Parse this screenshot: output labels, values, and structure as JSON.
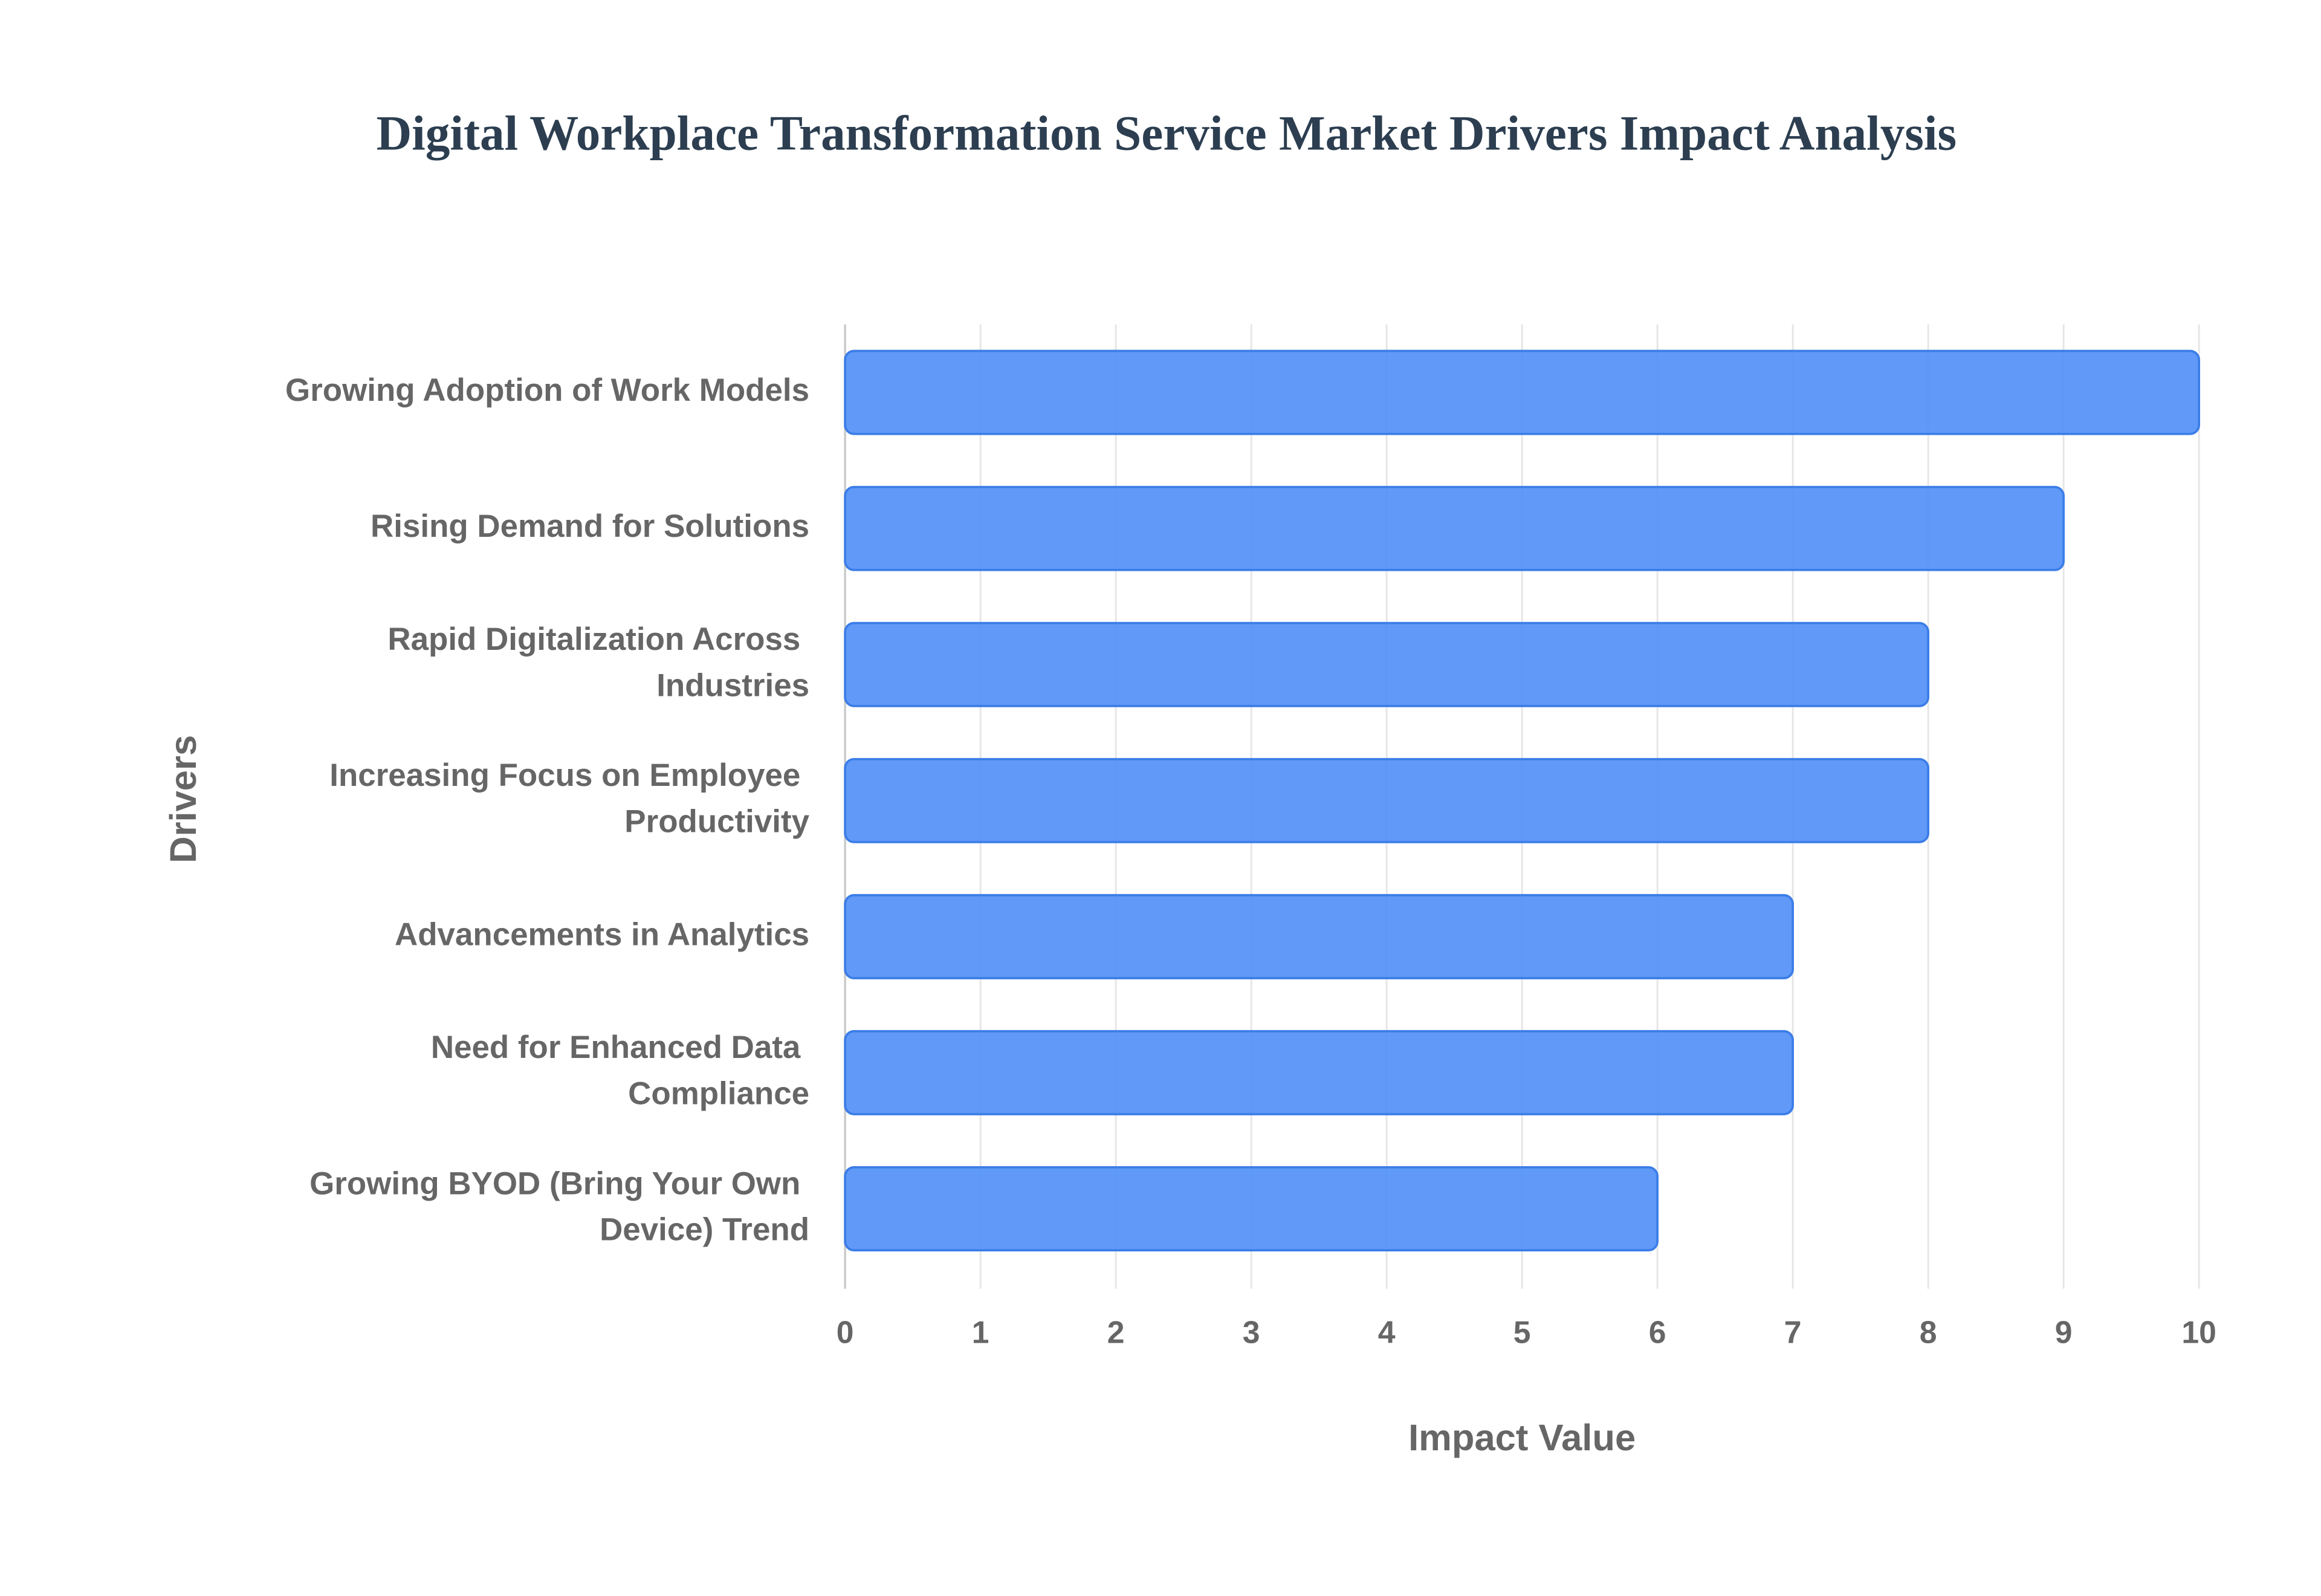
{
  "chart_data": {
    "type": "hbar",
    "title": "Digital Workplace Transformation Service Market Drivers Impact Analysis",
    "categories": [
      "Growing Adoption of Work Models",
      "Rising Demand for Solutions",
      "Rapid Digitalization Across Industries",
      "Increasing Focus on Employee Productivity",
      "Advancements in Analytics",
      "Need for Enhanced Data Compliance",
      "Growing BYOD (Bring Your Own Device) Trend"
    ],
    "values": [
      10,
      9,
      8,
      8,
      7,
      7,
      6
    ],
    "color": "#4f8ef6",
    "x_label": "Impact Value",
    "y_label": "Drivers",
    "xlim": [
      0,
      10
    ],
    "xticks": [
      0,
      1,
      2,
      3,
      4,
      5,
      6,
      7,
      8,
      9,
      10
    ],
    "grid": true
  }
}
